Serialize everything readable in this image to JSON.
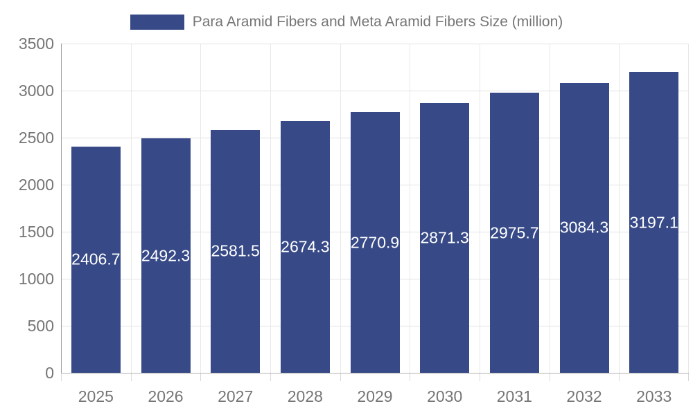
{
  "legend": {
    "label": "Para Aramid Fibers and Meta Aramid Fibers Size (million)",
    "swatch_color": "#374a87"
  },
  "chart_data": {
    "type": "bar",
    "title": "Para Aramid Fibers and Meta Aramid Fibers Size (million)",
    "categories": [
      "2025",
      "2026",
      "2027",
      "2028",
      "2029",
      "2030",
      "2031",
      "2032",
      "2033"
    ],
    "series": [
      {
        "name": "Para Aramid Fibers and Meta Aramid Fibers Size (million)",
        "values": [
          2406.7,
          2492.3,
          2581.5,
          2674.3,
          2770.9,
          2871.3,
          2975.7,
          3084.3,
          3197.1
        ]
      }
    ],
    "value_labels": [
      "2406.7",
      "2492.3",
      "2581.5",
      "2674.3",
      "2770.9",
      "2871.3",
      "2975.7",
      "3084.3",
      "3197.1"
    ],
    "xlabel": "",
    "ylabel": "",
    "ylim": [
      0,
      3500
    ],
    "yticks": [
      0,
      500,
      1000,
      1500,
      2000,
      2500,
      3000,
      3500
    ],
    "grid": true,
    "legend_position": "top-center",
    "bar_color": "#374a87",
    "value_label_color": "#ffffff",
    "axis_text_color": "#757575",
    "gridline_color": "#e2e2e2"
  }
}
